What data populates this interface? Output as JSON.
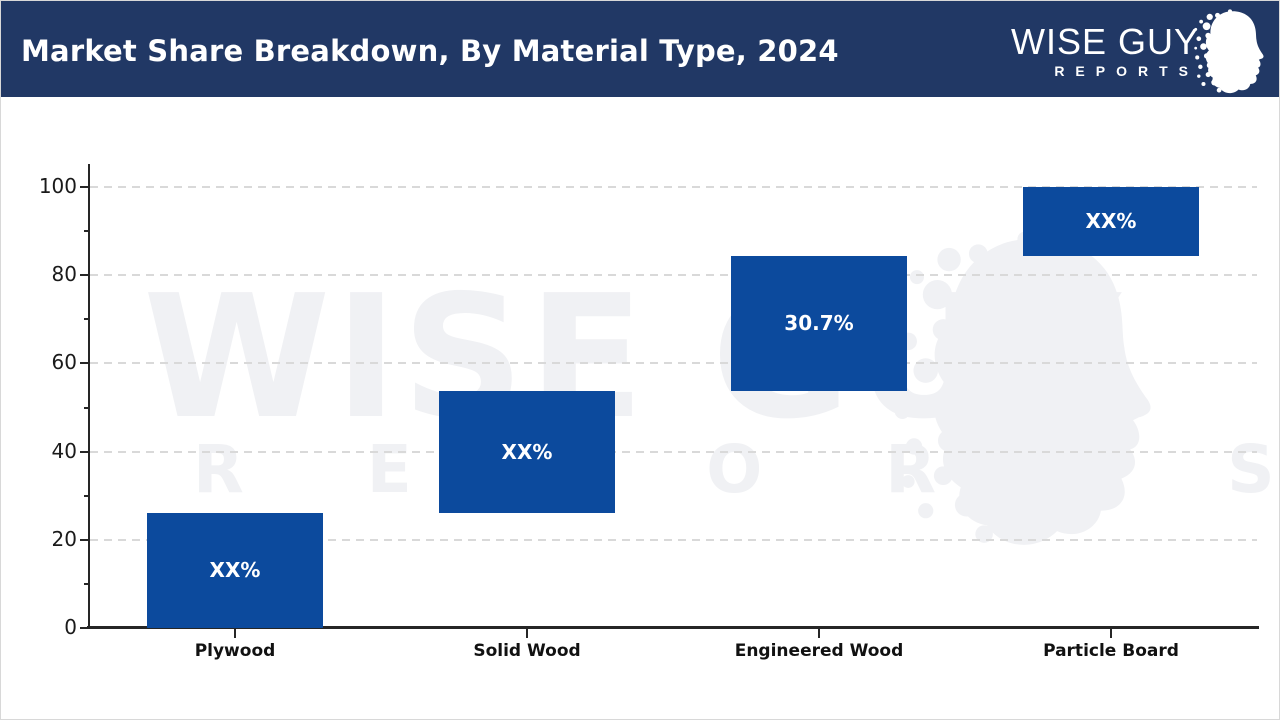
{
  "header": {
    "title": "Market Share Breakdown, By Material Type, 2024",
    "bg_color": "#213865",
    "logo": {
      "brand_line1": "WISE GUY",
      "brand_line2": "REPORTS",
      "icon": "dotted-head-profile-icon",
      "text_color": "#ffffff"
    }
  },
  "watermark": {
    "big_text": "WISE GUY",
    "small_text": "R E P O R T S",
    "icon": "dotted-head-profile-icon",
    "color": "#f0f1f4"
  },
  "chart_data": {
    "type": "bar",
    "subtype": "floating_waterfall_columns",
    "title": "Market Share Breakdown, By Material Type, 2024",
    "categories": [
      "Plywood",
      "Solid Wood",
      "Engineered Wood",
      "Particle Board"
    ],
    "series": [
      {
        "name": "Market share (%)",
        "segments": [
          {
            "category": "Plywood",
            "start": 0,
            "end": 26.1,
            "label": "XX%"
          },
          {
            "category": "Solid Wood",
            "start": 26.1,
            "end": 53.7,
            "label": "XX%"
          },
          {
            "category": "Engineered Wood",
            "start": 53.7,
            "end": 84.4,
            "label": "30.7%"
          },
          {
            "category": "Particle Board",
            "start": 84.4,
            "end": 100,
            "label": "XX%"
          }
        ]
      }
    ],
    "xlabel": "",
    "ylabel": "",
    "ylim": [
      0,
      100
    ],
    "yticks": [
      0,
      20,
      40,
      60,
      80,
      100
    ],
    "minor_ytick_step": 10,
    "grid": "horizontal_dashed",
    "legend_position": "none",
    "bar_color": "#0c4a9d",
    "bar_label_color": "#ffffff",
    "axis_color": "#262626",
    "gridline_color": "#d9d9d9",
    "tick_label_color": "#1a1a1a"
  }
}
